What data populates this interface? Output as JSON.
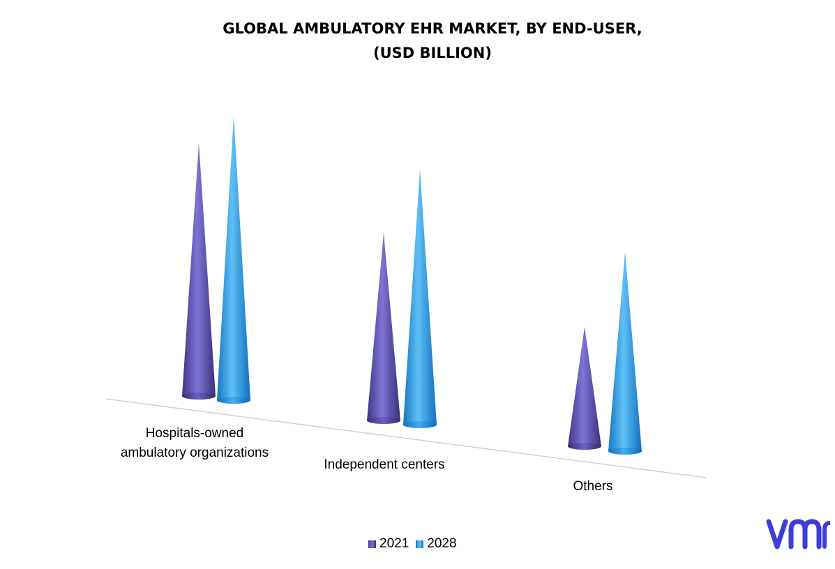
{
  "chart_data": {
    "type": "bar",
    "style": "3d-cone",
    "title": "GLOBAL AMBULATORY EHR MARKET,  BY END-USER,",
    "subtitle": "(USD BILLION)",
    "categories": [
      [
        "Hospitals-owned",
        "ambulatory organizations"
      ],
      [
        "Independent centers"
      ],
      [
        "Others"
      ]
    ],
    "series": [
      {
        "name": "2021",
        "color": "#5B4FA8",
        "values": [
          8.9,
          6.6,
          4.2
        ]
      },
      {
        "name": "2028",
        "color": "#1E90D8",
        "values": [
          10.0,
          9.0,
          7.0
        ]
      }
    ],
    "ylim": [
      0,
      10.5
    ],
    "grid": false,
    "legend_position": "bottom"
  },
  "logo": {
    "icon": "vmr-logo-icon",
    "text": "vmr",
    "color": "#3B3FD8"
  }
}
